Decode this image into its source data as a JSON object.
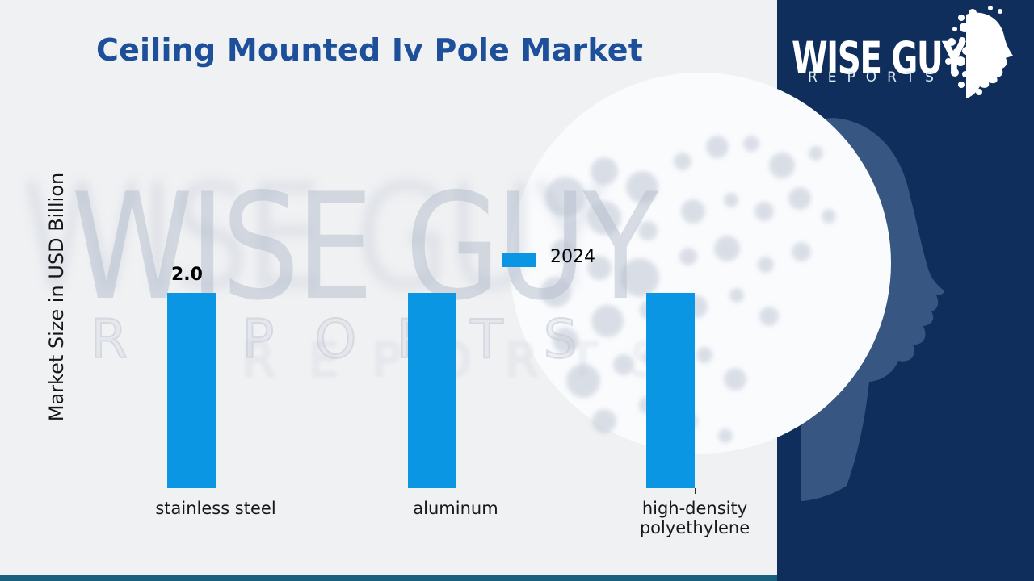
{
  "page": {
    "title": "Ceiling Mounted Iv Pole Market",
    "title_color": "#1d4f9a",
    "background_color": "#f0f1f3"
  },
  "branding": {
    "logo_line1": "WISE GUY",
    "logo_line2": "REPORTS",
    "logo_face_icon": "dotted-head-profile-icon",
    "panel_color": "#0f2e5c",
    "footer_bar_color": "#19607f",
    "watermark_line1": "WISE GUY",
    "watermark_line2": "REPORTS"
  },
  "chart_data": {
    "type": "bar",
    "title": "Ceiling Mounted Iv Pole Market",
    "xlabel": "",
    "ylabel": "Market Size in USD Billion",
    "categories": [
      "stainless steel",
      "aluminum",
      "high-density polyethylene"
    ],
    "series": [
      {
        "name": "2024",
        "color": "#0a96e2",
        "values": [
          2.0,
          2.0,
          2.0
        ]
      }
    ],
    "annotations": [
      {
        "bar_index": 0,
        "text": "2.0"
      }
    ],
    "ylim": [
      0,
      2.4
    ],
    "grid": false,
    "legend_position": "upper-center",
    "bar_color": "#0a96e2"
  }
}
